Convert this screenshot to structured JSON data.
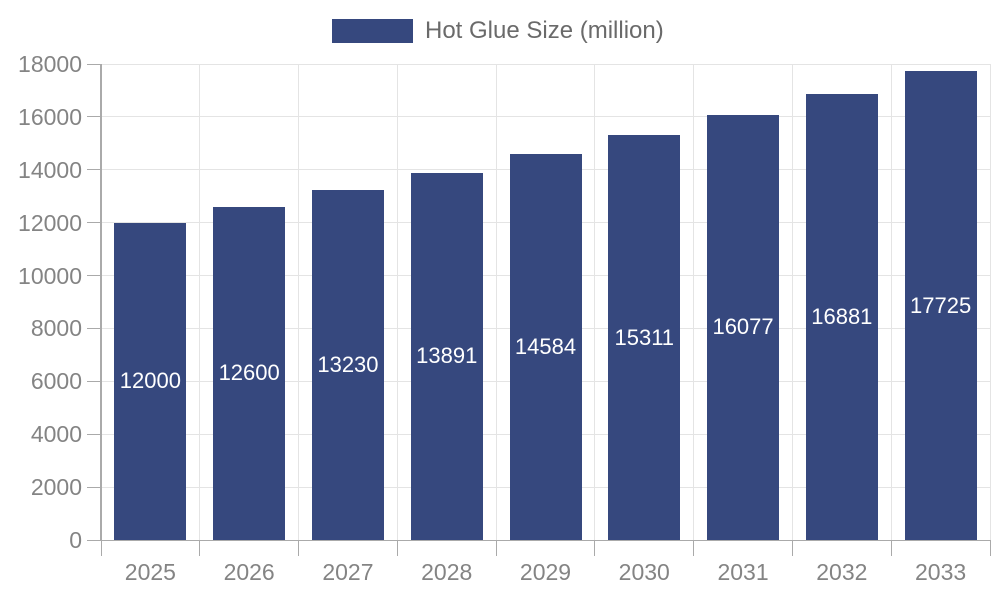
{
  "page": {
    "background_color": "#FFFFFF"
  },
  "legend": {
    "label": "Hot Glue Size (million)",
    "swatch_color": "#36487E",
    "text_color": "#6A6A6A",
    "position": "top-center"
  },
  "chart_data": {
    "type": "bar",
    "title": "Hot Glue Size (million)",
    "series_name": "Hot Glue Size (million)",
    "categories": [
      "2025",
      "2026",
      "2027",
      "2028",
      "2029",
      "2030",
      "2031",
      "2032",
      "2033"
    ],
    "values": [
      12000,
      12600,
      13230,
      13891,
      14584,
      15311,
      16077,
      16881,
      17725
    ],
    "xlabel": "",
    "ylabel": "",
    "ylim": [
      0,
      18000
    ],
    "ytick_step": 2000,
    "ytick_labels": [
      "0",
      "2000",
      "4000",
      "6000",
      "8000",
      "10000",
      "12000",
      "14000",
      "16000",
      "18000"
    ],
    "grid": true,
    "grid_horizontal": true,
    "grid_vertical": true,
    "legend_position": "top",
    "bar_color": "#36487E",
    "bar_label_color": "#FFFFFF",
    "grid_color": "#E4E4E4",
    "axis_color": "#AAAAAA",
    "axis_label_color": "#848484"
  }
}
